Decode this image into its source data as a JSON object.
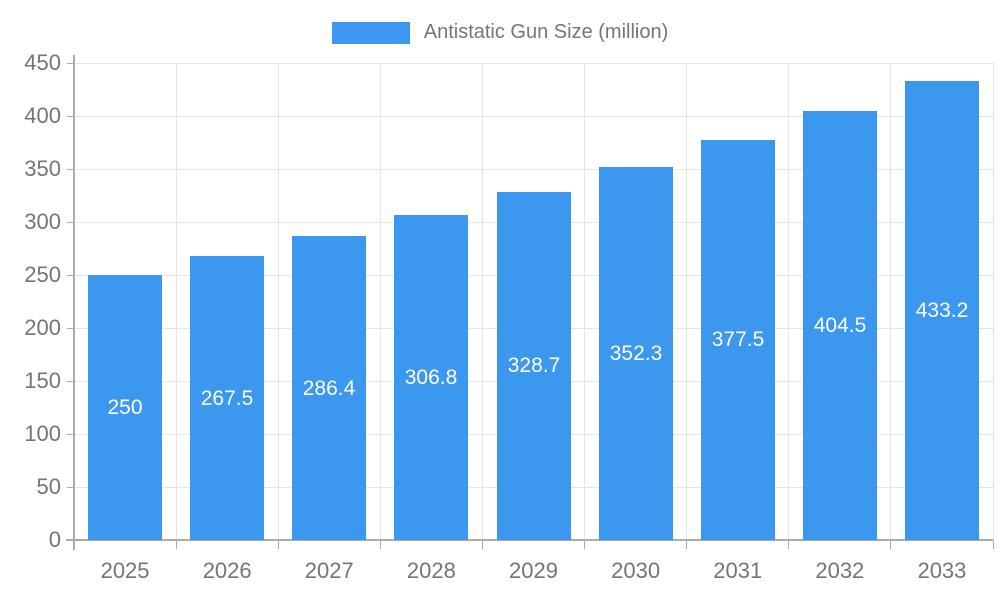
{
  "chart_data": {
    "type": "bar",
    "title": "Antistatic Gun Size (million)",
    "legend": {
      "label": "Antistatic Gun Size (million)",
      "position": "top"
    },
    "categories": [
      "2025",
      "2026",
      "2027",
      "2028",
      "2029",
      "2030",
      "2031",
      "2032",
      "2033"
    ],
    "series": [
      {
        "name": "Antistatic Gun Size (million)",
        "values": [
          250,
          267.5,
          286.4,
          306.8,
          328.7,
          352.3,
          377.5,
          404.5,
          433.2
        ],
        "labels": [
          "250",
          "267.5",
          "286.4",
          "306.8",
          "328.7",
          "352.3",
          "377.5",
          "404.5",
          "433.2"
        ]
      }
    ],
    "xlabel": "",
    "ylabel": "",
    "ylim": [
      0,
      450
    ],
    "yticks": [
      0,
      50,
      100,
      150,
      200,
      250,
      300,
      350,
      400,
      450
    ],
    "grid": true,
    "legend_position": "top",
    "colors": {
      "bar": "#3b98ee",
      "bar_label": "#ffffff",
      "axis_line": "#ababab",
      "grid_line": "#e6e6e6",
      "tick_label": "#757575",
      "legend_text": "#757575",
      "background": "#ffffff"
    }
  }
}
